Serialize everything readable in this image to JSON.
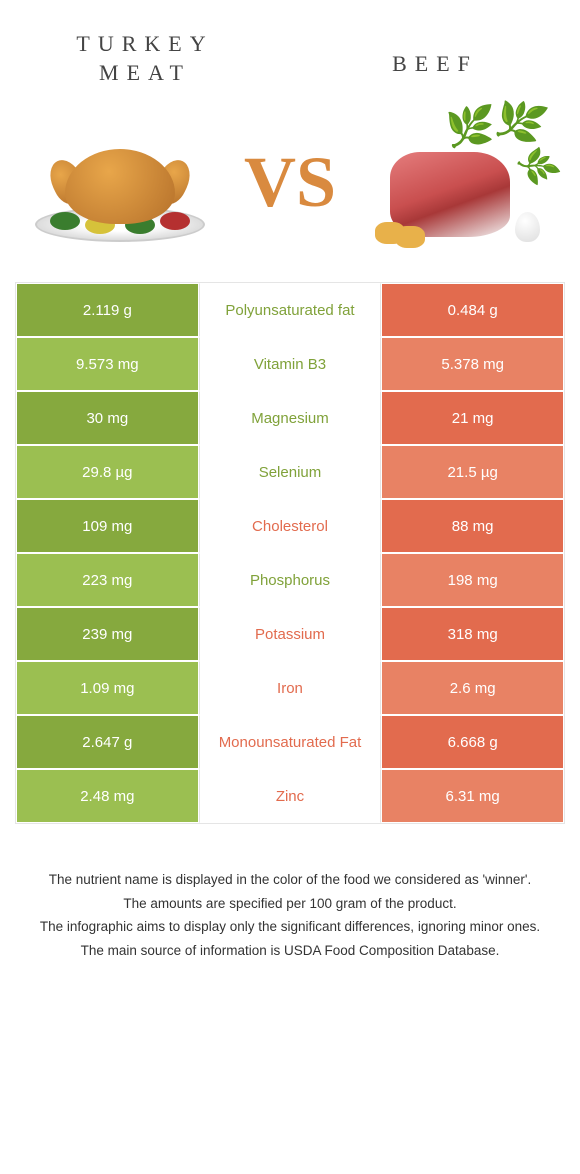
{
  "header": {
    "left_title_line1": "TURKEY",
    "left_title_line2": "MEAT",
    "right_title": "BEEF",
    "vs_label": "VS"
  },
  "colors": {
    "green_dark": "#86a93e",
    "green_light": "#9bbf51",
    "orange_dark": "#e26b4e",
    "orange_light": "#e88264",
    "text_green": "#80a23a",
    "text_orange": "#e26b4e"
  },
  "rows": [
    {
      "left": "2.119 g",
      "label": "Polyunsaturated fat",
      "right": "0.484 g",
      "winner": "left"
    },
    {
      "left": "9.573 mg",
      "label": "Vitamin B3",
      "right": "5.378 mg",
      "winner": "left"
    },
    {
      "left": "30 mg",
      "label": "Magnesium",
      "right": "21 mg",
      "winner": "left"
    },
    {
      "left": "29.8 µg",
      "label": "Selenium",
      "right": "21.5 µg",
      "winner": "left"
    },
    {
      "left": "109 mg",
      "label": "Cholesterol",
      "right": "88 mg",
      "winner": "right"
    },
    {
      "left": "223 mg",
      "label": "Phosphorus",
      "right": "198 mg",
      "winner": "left"
    },
    {
      "left": "239 mg",
      "label": "Potassium",
      "right": "318 mg",
      "winner": "right"
    },
    {
      "left": "1.09 mg",
      "label": "Iron",
      "right": "2.6 mg",
      "winner": "right"
    },
    {
      "left": "2.647 g",
      "label": "Monounsaturated Fat",
      "right": "6.668 g",
      "winner": "right"
    },
    {
      "left": "2.48 mg",
      "label": "Zinc",
      "right": "6.31 mg",
      "winner": "right"
    }
  ],
  "footnotes": [
    "The nutrient name is displayed in the color of the food we considered as 'winner'.",
    "The amounts are specified per 100 gram of the product.",
    "The infographic aims to display only the significant differences, ignoring minor ones.",
    "The main source of information is USDA Food Composition Database."
  ]
}
